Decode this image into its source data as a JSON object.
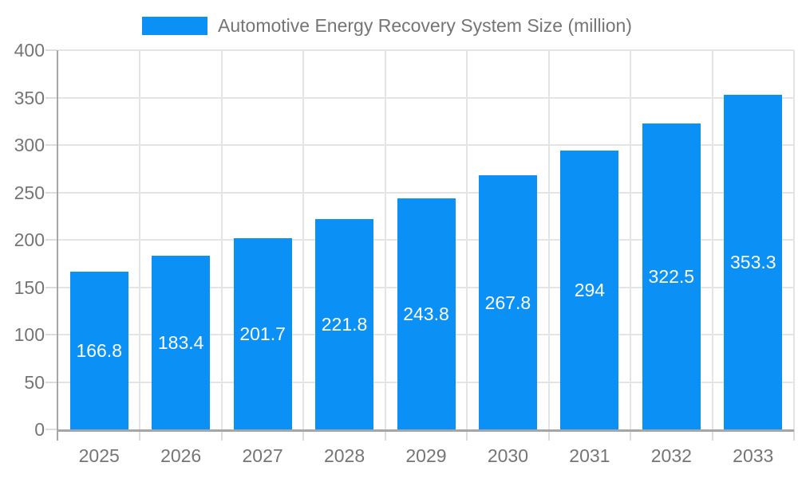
{
  "legend": {
    "label": "Automotive Energy Recovery System Size (million)"
  },
  "chart_data": {
    "type": "bar",
    "title": "Automotive Energy Recovery System Size (million)",
    "categories": [
      "2025",
      "2026",
      "2027",
      "2028",
      "2029",
      "2030",
      "2031",
      "2032",
      "2033"
    ],
    "series": [
      {
        "name": "Automotive Energy Recovery System Size (million)",
        "values": [
          166.8,
          183.4,
          201.7,
          221.8,
          243.8,
          267.8,
          294,
          322.5,
          353.3
        ]
      }
    ],
    "value_labels": [
      "166.8",
      "183.4",
      "201.7",
      "221.8",
      "243.8",
      "267.8",
      "294",
      "322.5",
      "353.3"
    ],
    "xlabel": "",
    "ylabel": "",
    "ylim": [
      0,
      400
    ],
    "yticks": [
      0,
      50,
      100,
      150,
      200,
      250,
      300,
      350,
      400
    ],
    "grid": true,
    "legend_position": "top-center",
    "value_label_position": "inside-center",
    "colors": {
      "bar": "#0b90f5",
      "axis_text": "#757575",
      "value_text": "#ffffff",
      "grid_line": "#e4e4e4",
      "tick_line": "#dcdcdc",
      "axis_line": "#a6a6a6",
      "background": "#ffffff"
    }
  }
}
